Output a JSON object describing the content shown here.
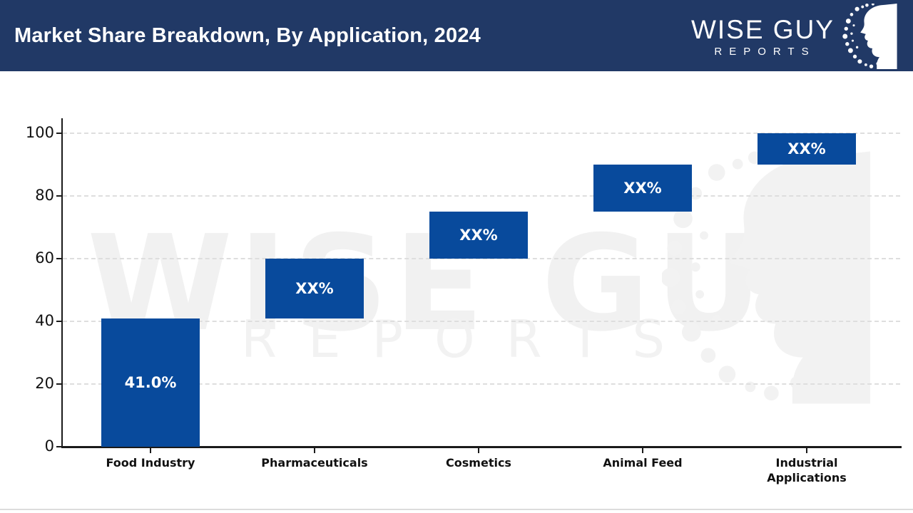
{
  "header": {
    "title": "Market Share Breakdown, By Application, 2024",
    "bg_color": "#213966",
    "logo": {
      "line1": "WISE GUY",
      "line2": "REPORTS"
    }
  },
  "watermark": {
    "line1": "WISE GUY",
    "line2": "REPORTS"
  },
  "chart_data": {
    "type": "bar",
    "subtype": "waterfall",
    "title": "Market Share Breakdown, By Application, 2024",
    "categories": [
      "Food Industry",
      "Pharmaceuticals",
      "Cosmetics",
      "Animal Feed",
      "Industrial Applications"
    ],
    "bars": [
      {
        "category": "Food Industry",
        "start": 0,
        "end": 41,
        "label": "41.0%"
      },
      {
        "category": "Pharmaceuticals",
        "start": 41,
        "end": 60,
        "label": "XX%"
      },
      {
        "category": "Cosmetics",
        "start": 60,
        "end": 75,
        "label": "XX%"
      },
      {
        "category": "Animal Feed",
        "start": 75,
        "end": 90,
        "label": "XX%"
      },
      {
        "category": "Industrial Applications",
        "start": 90,
        "end": 100,
        "label": "XX%"
      }
    ],
    "ylim": [
      0,
      100
    ],
    "yticks": [
      0,
      20,
      40,
      60,
      80,
      100
    ],
    "grid": "horizontal dashed",
    "legend": "none",
    "bar_color": "#084a9c",
    "bar_label_color": "#ffffff",
    "axis_color": "#1a1a1a",
    "grid_color": "#dedede"
  }
}
